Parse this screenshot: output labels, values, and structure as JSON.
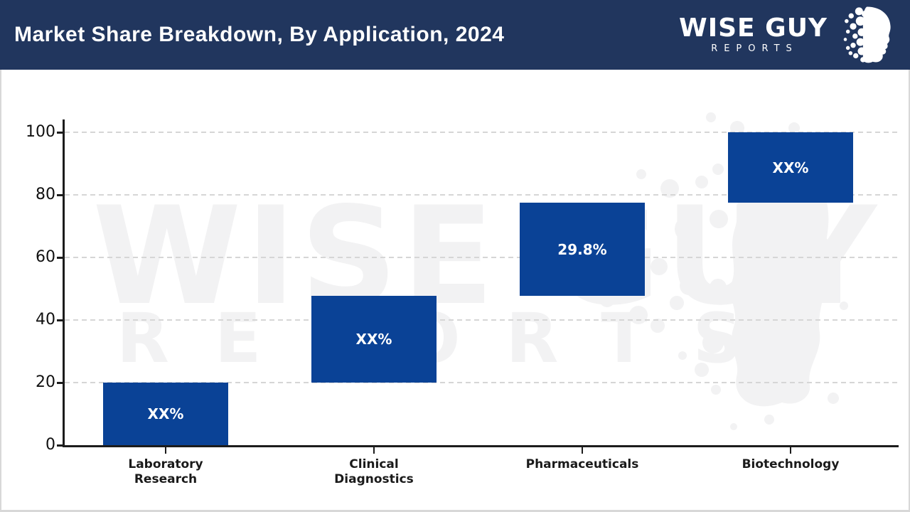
{
  "header": {
    "title": "Market Share Breakdown, By Application, 2024",
    "logo": {
      "brand": "WISE GUY",
      "sub": "REPORTS"
    }
  },
  "watermark": {
    "brand": "WISE GUY",
    "sub": "REPORTS"
  },
  "chart_data": {
    "type": "bar",
    "variant": "waterfall",
    "title": "Market Share Breakdown, By Application, 2024",
    "categories": [
      "Laboratory Research",
      "Clinical Diagnostics",
      "Pharmaceuticals",
      "Biotechnology"
    ],
    "category_lines": [
      [
        "Laboratory",
        "Research"
      ],
      [
        "Clinical",
        "Diagnostics"
      ],
      [
        "Pharmaceuticals"
      ],
      [
        "Biotechnology"
      ]
    ],
    "series": [
      {
        "category": "Laboratory Research",
        "start": 0,
        "end": 20,
        "label": "XX%"
      },
      {
        "category": "Clinical Diagnostics",
        "start": 20,
        "end": 47.7,
        "label": "XX%"
      },
      {
        "category": "Pharmaceuticals",
        "start": 47.7,
        "end": 77.5,
        "label": "29.8%"
      },
      {
        "category": "Biotechnology",
        "start": 77.5,
        "end": 100,
        "label": "XX%"
      }
    ],
    "yticks": [
      0,
      20,
      40,
      60,
      80,
      100
    ],
    "ylim": [
      0,
      104
    ],
    "xlabel": "",
    "ylabel": "",
    "grid": {
      "axis": "y",
      "style": "dashed",
      "color": "#d6d6d6"
    },
    "legend": "none",
    "colors": {
      "bar": "#0a4296",
      "bar_label": "#ffffff",
      "header_background": "#21365e",
      "axis": "#1c1c1c",
      "watermark": "#f2f2f3"
    }
  }
}
